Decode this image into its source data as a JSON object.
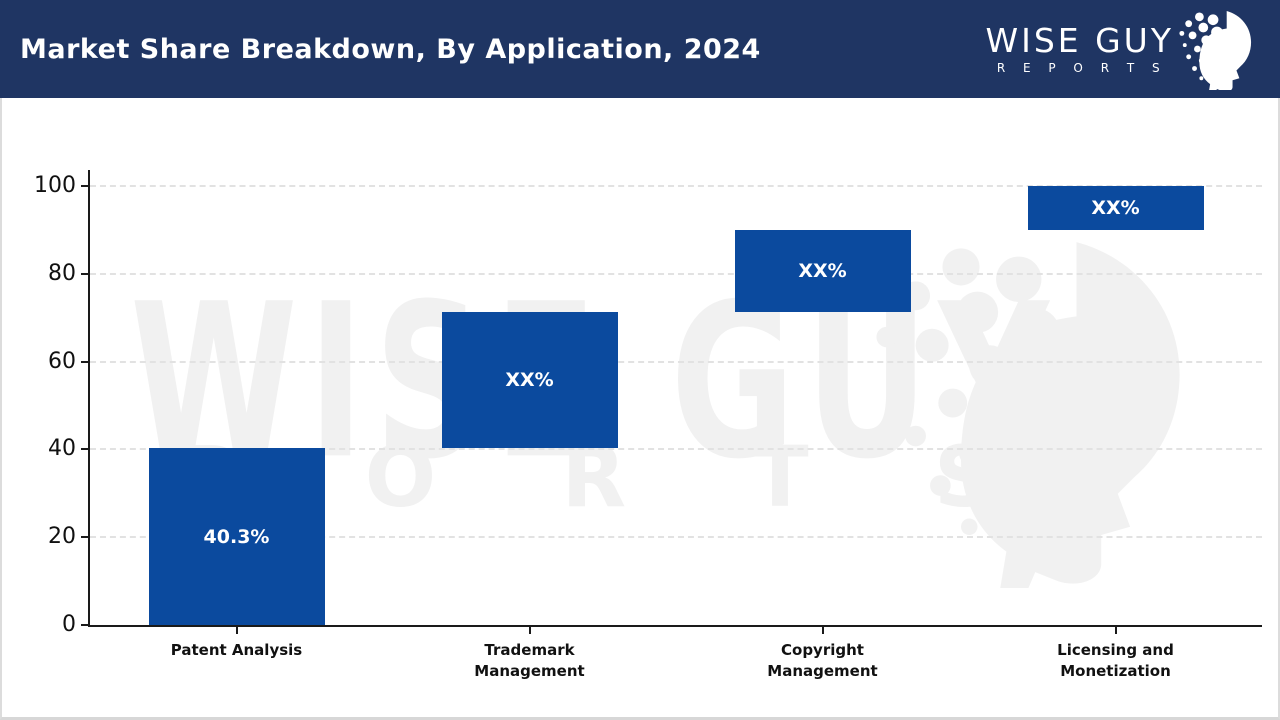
{
  "header": {
    "title": "Market Share Breakdown, By Application, 2024",
    "brand": {
      "name_top": "WISE GUY",
      "name_bottom": "R E P O R T S"
    }
  },
  "watermark": {
    "line1": "WISE GUY",
    "line2": "P O R T S"
  },
  "colors": {
    "header_bg": "#1f3563",
    "bar": "#0b4a9e",
    "bar_label": "#ffffff",
    "gridline": "#e2e2e2",
    "axis": "#1a1a1a",
    "watermark": "#f1f1f1"
  },
  "chart_data": {
    "type": "bar",
    "variant": "waterfall-breakdown",
    "title": "Market Share Breakdown, By Application, 2024",
    "categories": [
      "Patent Analysis",
      "Trademark Management",
      "Copyright Management",
      "Licensing and Monetization"
    ],
    "category_label_lines": [
      [
        "Patent Analysis"
      ],
      [
        "Trademark",
        "Management"
      ],
      [
        "Copyright",
        "Management"
      ],
      [
        "Licensing and",
        "Monetization"
      ]
    ],
    "segments": [
      {
        "category": "Patent Analysis",
        "start": 0,
        "end": 40.3,
        "label": "40.3%"
      },
      {
        "category": "Trademark Management",
        "start": 40.3,
        "end": 71.3,
        "label": "XX%"
      },
      {
        "category": "Copyright Management",
        "start": 71.3,
        "end": 90,
        "label": "XX%"
      },
      {
        "category": "Licensing and Monetization",
        "start": 90,
        "end": 100,
        "label": "XX%"
      }
    ],
    "xlabel": "",
    "ylabel": "",
    "ylim": [
      0,
      100
    ],
    "yticks": [
      0,
      20,
      40,
      60,
      80,
      100
    ],
    "grid": "horizontal-dashed",
    "legend": "none",
    "bar_color": "#0b4a9e",
    "bar_label_color": "#ffffff"
  }
}
